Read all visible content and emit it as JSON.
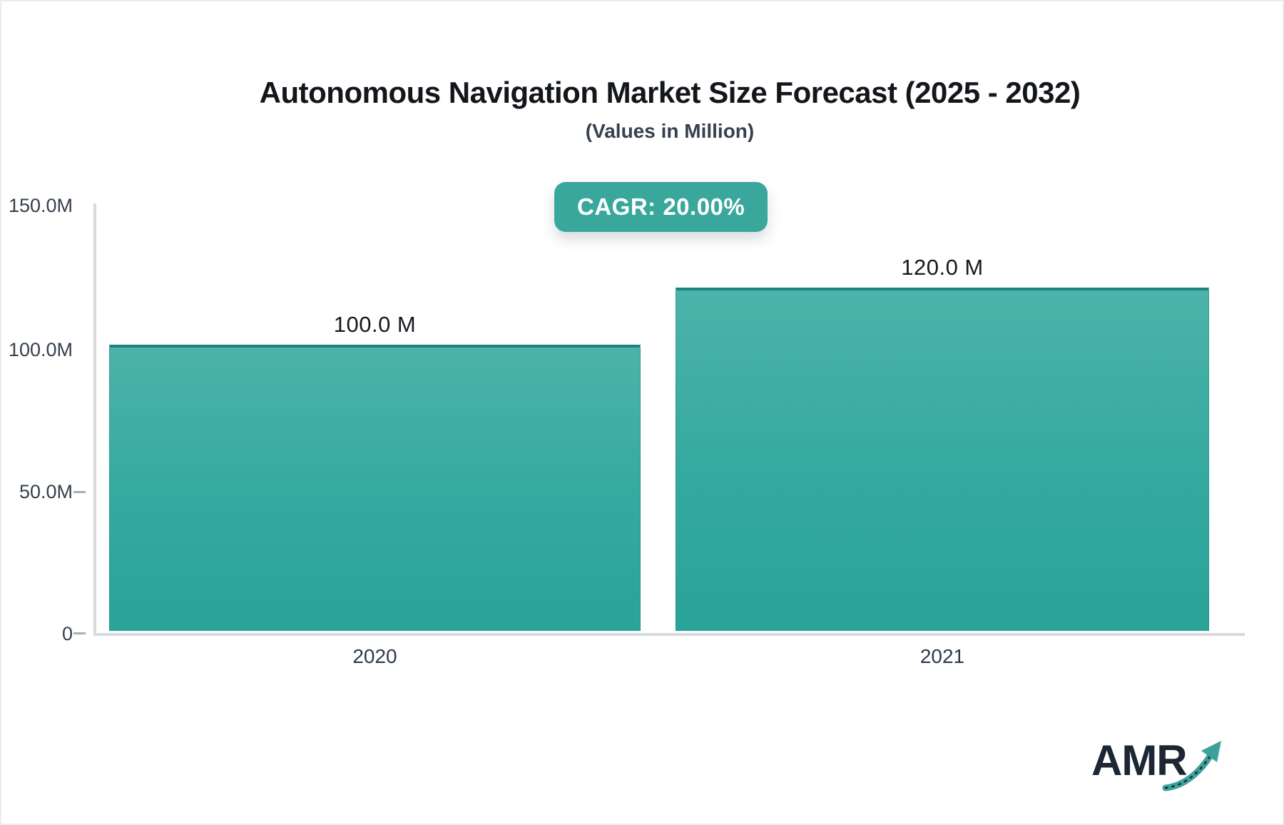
{
  "header": {
    "title": "Autonomous Navigation Market Size Forecast (2025 - 2032)",
    "subtitle": "(Values in Million)",
    "cagr_badge": "CAGR: 20.00%"
  },
  "chart_data": {
    "type": "bar",
    "title": "Autonomous Navigation Market Size Forecast (2025 - 2032)",
    "subtitle": "(Values in Million)",
    "categories": [
      "2020",
      "2021"
    ],
    "values": [
      100,
      120
    ],
    "bar_labels": [
      "100.0 M",
      "120.0 M"
    ],
    "unit": "Million",
    "cagr_percent": "20.00%",
    "yticks": [
      "150.0M",
      "100.0M",
      "50.0M",
      "0"
    ],
    "ylim": [
      0,
      150
    ],
    "grid": false,
    "legend": "none",
    "colors": {
      "bar_top": "#4cb3aa",
      "bar_bottom": "#2aa399",
      "bar_border": "#1e827c",
      "badge": "#3aa79d",
      "axis": "#d6d9de"
    }
  },
  "branding": {
    "logo_text": "AMR",
    "logo_color": "#1d2633",
    "arrow_color": "#3aa29a"
  }
}
